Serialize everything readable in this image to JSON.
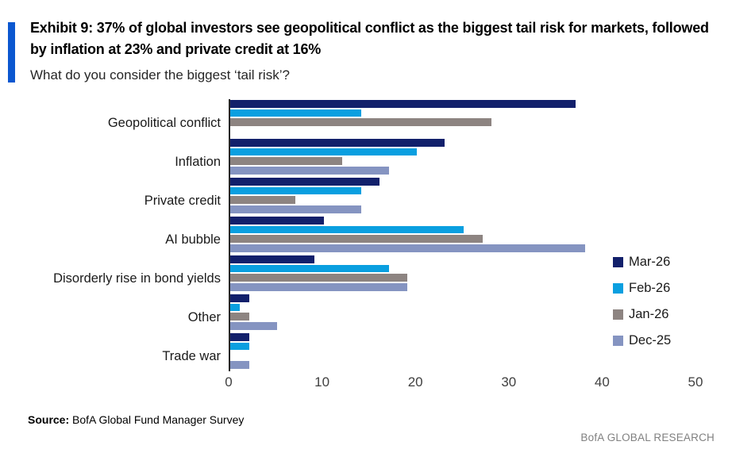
{
  "header": {
    "exhibit_title": "Exhibit 9: 37% of global investors see geopolitical conflict as the biggest tail risk for markets, followed by inflation at 23% and private credit at 16%",
    "subtitle": "What do you consider the biggest ‘tail risk’?",
    "accent_color": "#0B57D0"
  },
  "chart_data": {
    "type": "bar",
    "orientation": "horizontal",
    "title": "What do you consider the biggest ‘tail risk’?",
    "categories": [
      "Geopolitical conflict",
      "Inflation",
      "Private credit",
      "AI bubble",
      "Disorderly rise in bond yields",
      "Other",
      "Trade war"
    ],
    "series": [
      {
        "name": "Mar-26",
        "color": "#12206B",
        "values": [
          37,
          23,
          16,
          10,
          9,
          2,
          2
        ]
      },
      {
        "name": "Feb-26",
        "color": "#0A9FE0",
        "values": [
          14,
          20,
          14,
          25,
          17,
          1,
          2
        ]
      },
      {
        "name": "Jan-26",
        "color": "#8D8481",
        "values": [
          28,
          12,
          7,
          27,
          19,
          2,
          0
        ]
      },
      {
        "name": "Dec-25",
        "color": "#8594C1",
        "values": [
          0,
          17,
          14,
          38,
          19,
          5,
          2
        ]
      }
    ],
    "xlabel": "",
    "ylabel": "",
    "xlim": [
      0,
      50
    ],
    "xticks": [
      0,
      10,
      20,
      30,
      40,
      50
    ],
    "grid": false,
    "legend_position": "right"
  },
  "footer": {
    "source_label": "Source:",
    "source_text": " BofA Global Fund Manager Survey",
    "brand": "BofA GLOBAL RESEARCH"
  }
}
